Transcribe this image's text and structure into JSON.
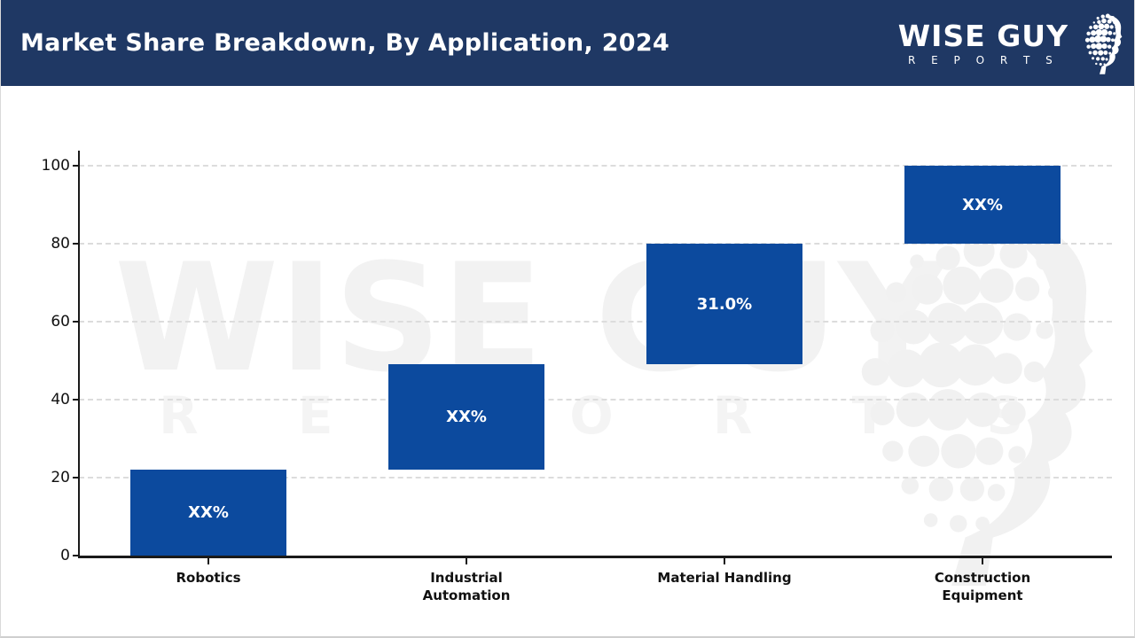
{
  "header": {
    "title": "Market Share Breakdown, By Application, 2024",
    "logo": {
      "name": "WISE GUY",
      "tagline": "R E P O R T S"
    }
  },
  "watermark": {
    "name": "WISE GUY",
    "tagline": "R E P O R T S"
  },
  "chart_data": {
    "type": "bar",
    "subtype": "waterfall",
    "title": "Market Share Breakdown, By Application, 2024",
    "categories": [
      "Robotics",
      "Industrial\nAutomation",
      "Material Handling",
      "Construction\nEquipment"
    ],
    "segments": [
      {
        "category": "Robotics",
        "start": 0,
        "end": 22,
        "value": 22,
        "label": "XX%"
      },
      {
        "category": "Industrial Automation",
        "start": 22,
        "end": 49,
        "value": 27,
        "label": "XX%"
      },
      {
        "category": "Material Handling",
        "start": 49,
        "end": 80,
        "value": 31,
        "label": "31.0%"
      },
      {
        "category": "Construction Equipment",
        "start": 80,
        "end": 100,
        "value": 20,
        "label": "XX%"
      }
    ],
    "yticks": [
      0,
      20,
      40,
      60,
      80,
      100
    ],
    "ylim": [
      0,
      104
    ],
    "xlabel": "",
    "ylabel": "",
    "grid": {
      "horizontal": true,
      "style": "dashed"
    },
    "legend": "none"
  },
  "colors": {
    "header_bg": "#1f3864",
    "bar": "#0c4a9e",
    "bar_label": "#ffffff",
    "axis": "#1a1a1a",
    "grid": "#dcdcdc",
    "watermark": "#f2f2f2"
  }
}
